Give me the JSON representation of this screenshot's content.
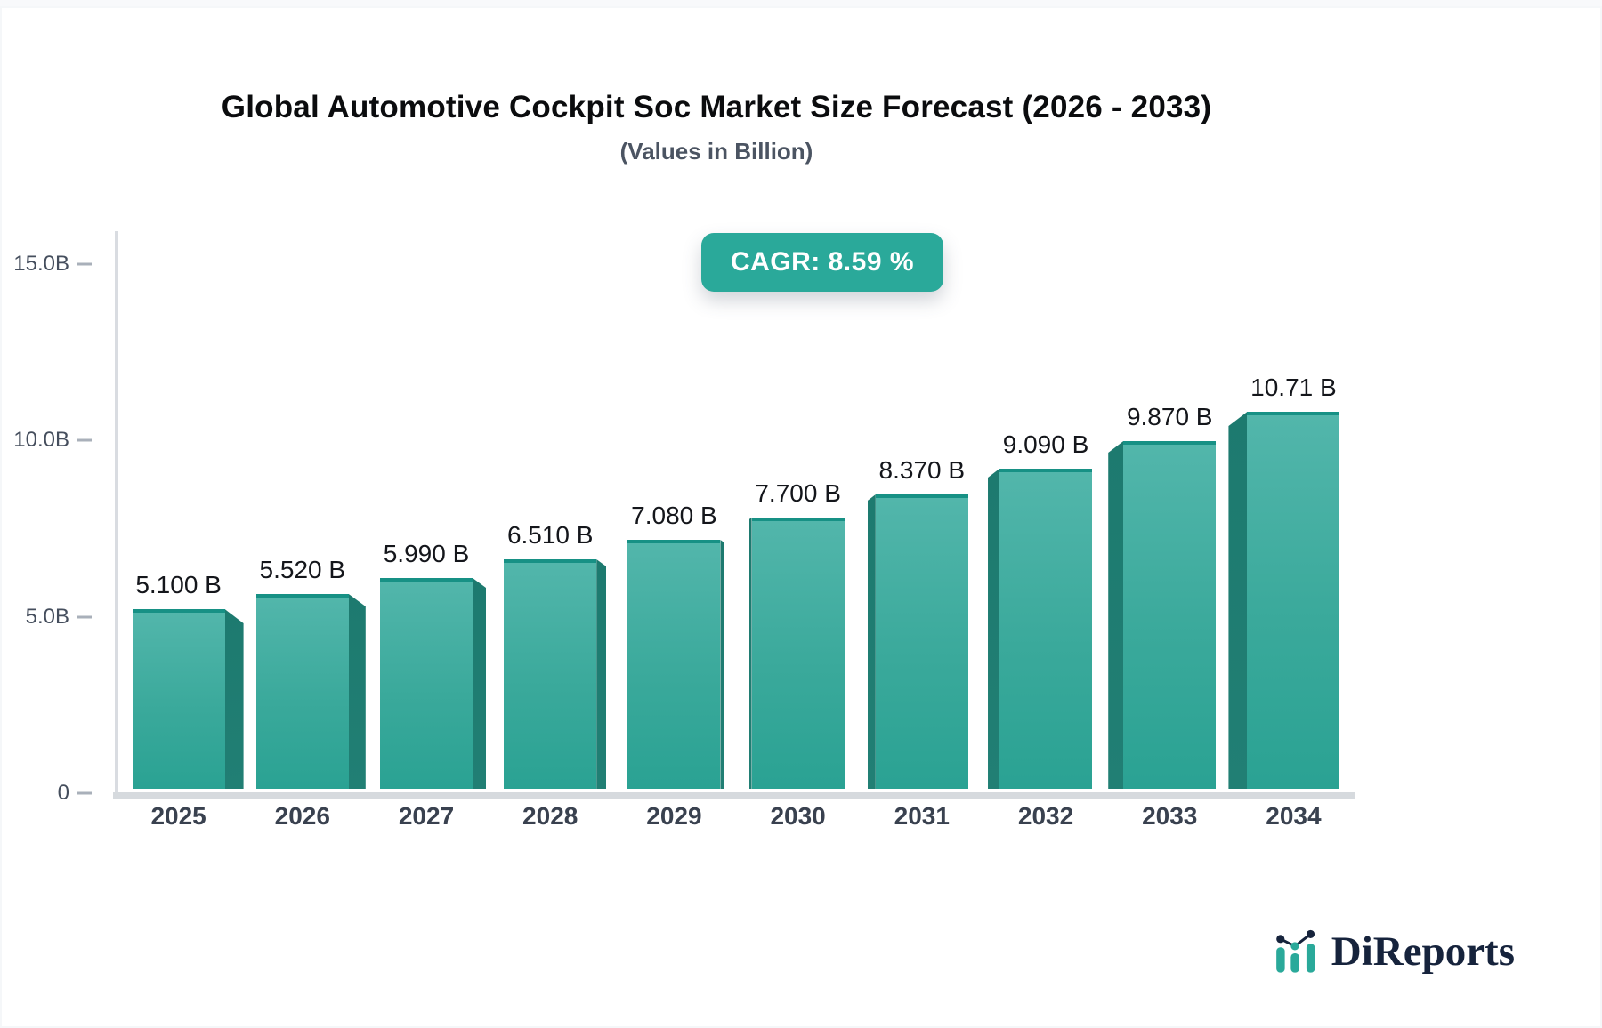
{
  "header": {
    "title": "Global Automotive Cockpit Soc Market Size Forecast (2026 - 2033)",
    "subtitle": "(Values in Billion)",
    "cagr_badge": "CAGR: 8.59 %"
  },
  "chart_data": {
    "type": "bar",
    "title": "Global Automotive Cockpit Soc Market Size Forecast (2026 - 2033)",
    "subtitle": "(Values in Billion)",
    "annotation": "CAGR: 8.59 %",
    "categories": [
      "2025",
      "2026",
      "2027",
      "2028",
      "2029",
      "2030",
      "2031",
      "2032",
      "2033",
      "2034"
    ],
    "values": [
      5.1,
      5.52,
      5.99,
      6.51,
      7.08,
      7.7,
      8.37,
      9.09,
      9.87,
      10.71
    ],
    "value_labels": [
      "5.100 B",
      "5.520 B",
      "5.990 B",
      "6.510 B",
      "7.080 B",
      "7.700 B",
      "8.370 B",
      "9.090 B",
      "9.870 B",
      "10.71 B"
    ],
    "xlabel": "",
    "ylabel": "",
    "ylim": [
      0,
      15
    ],
    "y_ticks": [
      0,
      5,
      10,
      15
    ],
    "y_tick_labels_top_to_bottom": [
      "15.0B",
      "10.0B",
      "5.0B",
      "0"
    ],
    "grid": false,
    "legend": "none",
    "bar_style": "3d-teal"
  },
  "colors": {
    "accent": "#2aa99a",
    "bar_face_top": "#52b6ab",
    "bar_face_bottom": "#2aa293",
    "bar_top_rim": "#179185",
    "bar_side": "#1d7a6f",
    "axis_line": "#d9dce1",
    "baseline": "#d6dade",
    "tick_text": "#454e5d",
    "x_label_text": "#39414f",
    "value_text": "#14161b",
    "badge_bg": "#2aa99a",
    "badge_text": "#ffffff",
    "title_text": "#0b0c0e",
    "subtitle_text": "#4b5462",
    "logo_text": "#16233c"
  },
  "logo": {
    "text": "DiReports",
    "icon": "mini-bar-chart-logo-icon"
  }
}
